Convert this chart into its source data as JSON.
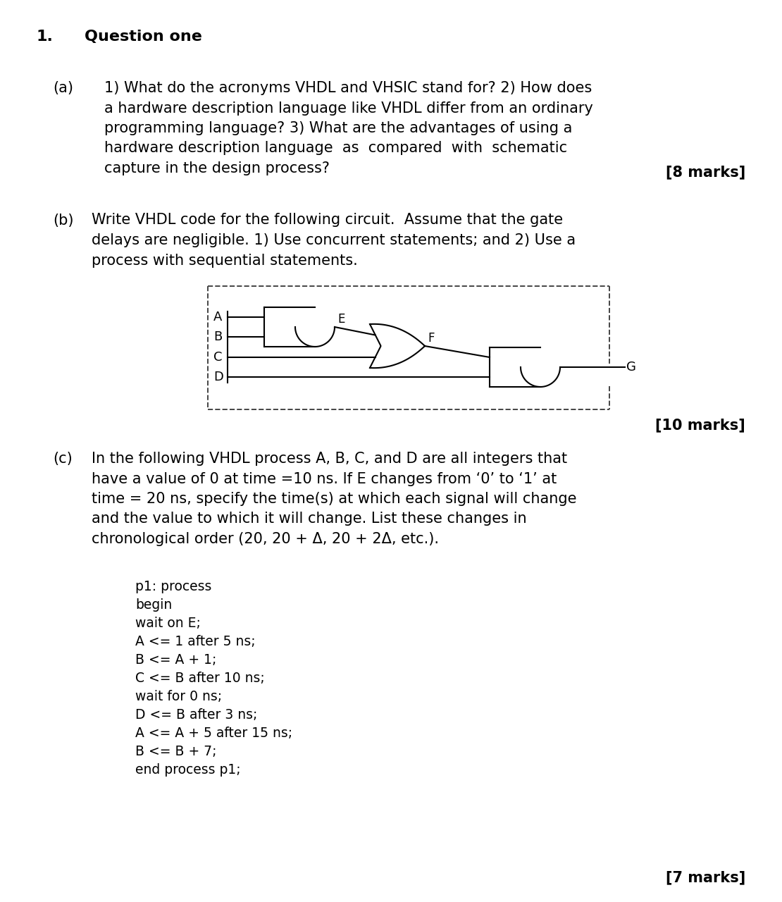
{
  "bg_color": "#ffffff",
  "text_color": "#000000",
  "title_num": "1.",
  "title_text": "Question one",
  "section_a_label": "(a)",
  "section_a_line1": "1) What do the acronyms VHDL and VHSIC stand for? 2) How does",
  "section_a_line2": "a hardware description language like VHDL differ from an ordinary",
  "section_a_line3": "programming language? 3) What are the advantages of using a",
  "section_a_line4": "hardware description language  as  compared  with  schematic",
  "section_a_line5": "capture in the design process?",
  "section_a_marks": "[8 marks]",
  "section_b_label": "(b)",
  "section_b_line1": "Write VHDL code for the following circuit.  Assume that the gate",
  "section_b_line2": "delays are negligible. 1) Use concurrent statements; and 2) Use a",
  "section_b_line3": "process with sequential statements.",
  "section_b_marks": "[10 marks]",
  "section_c_label": "(c)",
  "section_c_line1": "In the following VHDL process A, B, C, and D are all integers that",
  "section_c_line2": "have a value of 0 at time =10 ns. If E changes from ‘0’ to ‘1’ at",
  "section_c_line3": "time = 20 ns, specify the time(s) at which each signal will change",
  "section_c_line4": "and the value to which it will change. List these changes in",
  "section_c_line5": "chronological order (20, 20 + Δ, 20 + 2Δ, etc.).",
  "section_c_marks": "[7 marks]",
  "code_lines": [
    "p1: process",
    "begin",
    "wait on E;",
    "A <= 1 after 5 ns;",
    "B <= A + 1;",
    "C <= B after 10 ns;",
    "wait for 0 ns;",
    "D <= B after 3 ns;",
    "A <= A + 5 after 15 ns;",
    "B <= B + 7;",
    "end process p1;"
  ],
  "gate_color": "#000000",
  "label_color": "#000000"
}
